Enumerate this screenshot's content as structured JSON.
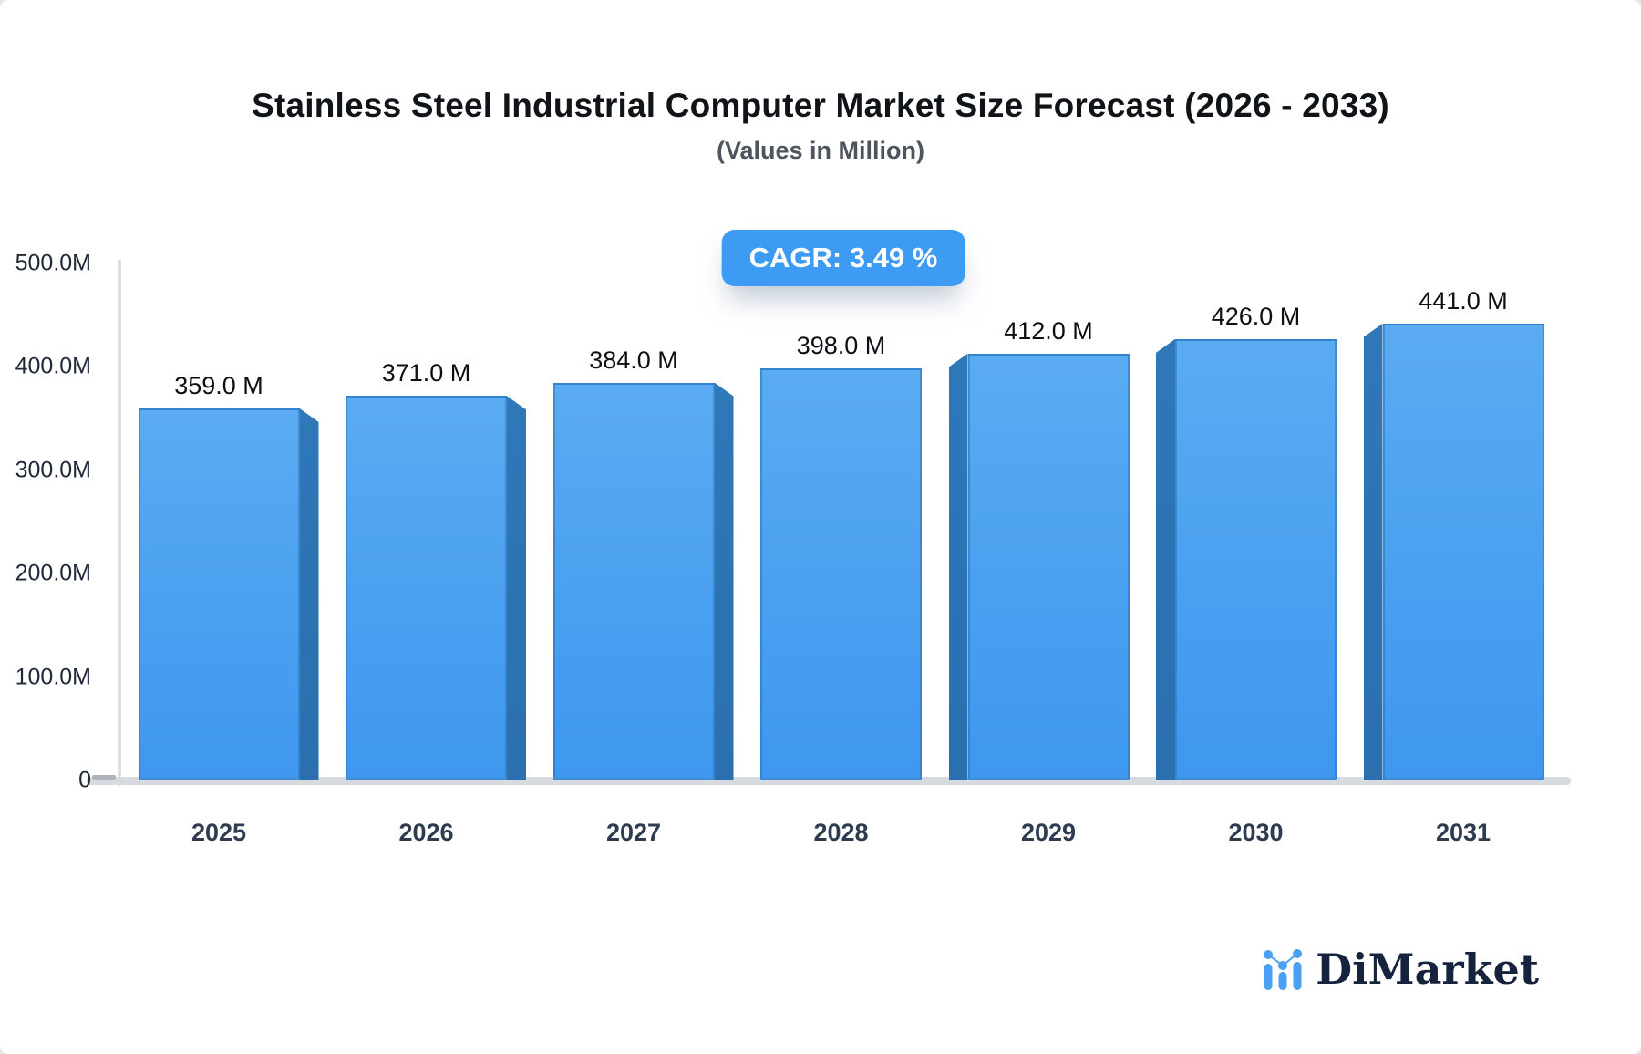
{
  "title": "Stainless Steel Industrial Computer Market Size Forecast (2026 - 2033)",
  "subtitle": "(Values in Million)",
  "badge": {
    "label": "CAGR: 3.49 %"
  },
  "logo": {
    "text": "DiMarket",
    "icon": "bar-chart-logo-icon"
  },
  "colors": {
    "bar_face_top": "#5aabf1",
    "bar_face_bottom": "#3f97ef",
    "bar_side": "#2d73b4",
    "badge_background": "#3d9bf3",
    "axis_gray": "#d7dade",
    "logo_blue": "#4aa0f2",
    "logo_navy": "#16233f"
  },
  "chart_data": {
    "type": "bar",
    "title": "Stainless Steel Industrial Computer Market Size Forecast (2026 - 2033)",
    "subtitle": "(Values in Million)",
    "unit": "Million",
    "categories": [
      "2025",
      "2026",
      "2027",
      "2028",
      "2029",
      "2030",
      "2031"
    ],
    "values": [
      359,
      371,
      384,
      398,
      412,
      426,
      441
    ],
    "value_labels": [
      "359.0 M",
      "371.0 M",
      "384.0 M",
      "398.0 M",
      "412.0 M",
      "426.0 M",
      "441.0 M"
    ],
    "cagr": "3.49 %",
    "ylim": [
      0,
      500
    ],
    "yticks": [
      {
        "label": "0",
        "value": 0
      },
      {
        "label": "100.0M",
        "value": 100
      },
      {
        "label": "200.0M",
        "value": 200
      },
      {
        "label": "300.0M",
        "value": 300
      },
      {
        "label": "400.0M",
        "value": 400
      },
      {
        "label": "500.0M",
        "value": 500
      }
    ],
    "grid": false,
    "legend": false,
    "style": "3d-extruded-bars"
  }
}
